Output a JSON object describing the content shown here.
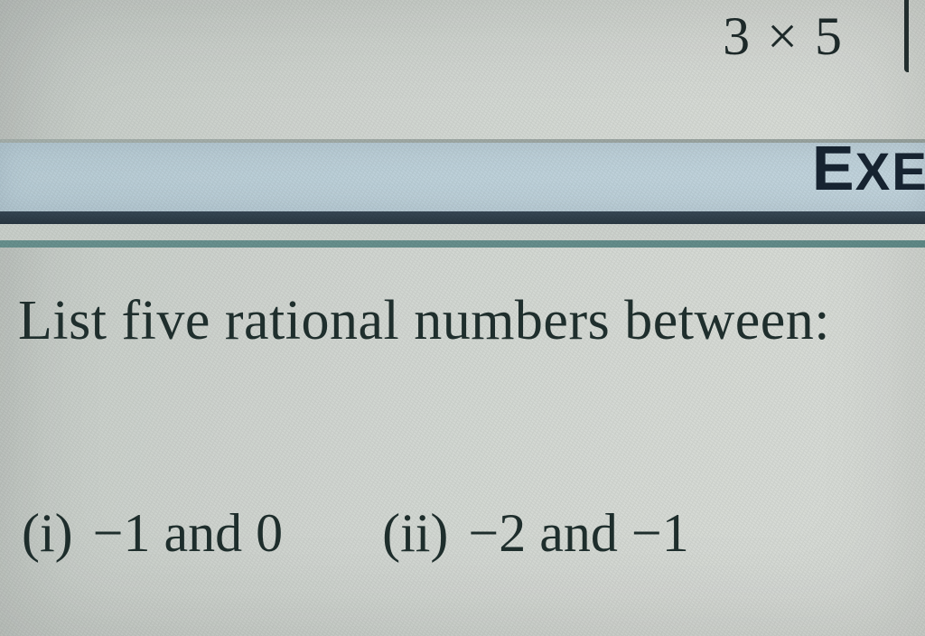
{
  "fragment": {
    "expression": "3 × 5"
  },
  "banner": {
    "heading_prefix": "E",
    "heading_rest": "XE",
    "fill_color": "#bdd0d9",
    "rule_dark_color": "#1b2a36",
    "rule_accent_color": "#5a8684"
  },
  "question": {
    "text": "List five rational numbers between:"
  },
  "options": [
    {
      "label": "(i)",
      "text": "−1 and 0"
    },
    {
      "label": "(ii)",
      "text": "−2 and −1"
    }
  ],
  "page_bg": "#ced3ce",
  "text_color": "#20302e"
}
